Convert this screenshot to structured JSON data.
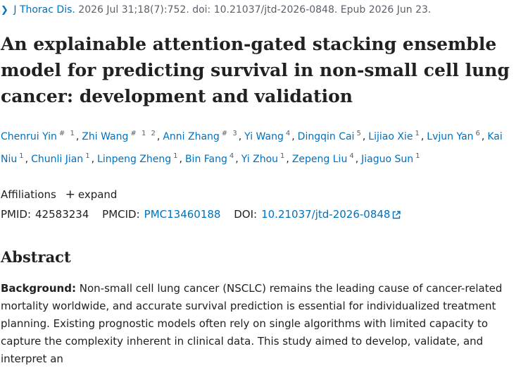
{
  "citation": {
    "journal": "J Thorac Dis.",
    "details": "2026 Jul 31;18(7):752. doi: 10.21037/jtd-2026-0848. Epub 2026 Jun 23."
  },
  "title": "An explainable attention-gated stacking ensemble model for predicting survival in non-small cell lung cancer: development and validation",
  "authors": [
    {
      "name": "Chenrui Yin",
      "sup": "# 1"
    },
    {
      "name": "Zhi Wang",
      "sup": "# 1 2"
    },
    {
      "name": "Anni Zhang",
      "sup": "# 3"
    },
    {
      "name": "Yi Wang",
      "sup": "4"
    },
    {
      "name": "Dingqin Cai",
      "sup": "5"
    },
    {
      "name": "Lijiao Xie",
      "sup": "1"
    },
    {
      "name": "Lvjun Yan",
      "sup": "6"
    },
    {
      "name": "Kai Niu",
      "sup": "1"
    },
    {
      "name": "Chunli Jian",
      "sup": "1"
    },
    {
      "name": "Linpeng Zheng",
      "sup": "1"
    },
    {
      "name": "Bin Fang",
      "sup": "4"
    },
    {
      "name": "Yi Zhou",
      "sup": "1"
    },
    {
      "name": "Zepeng Liu",
      "sup": "4"
    },
    {
      "name": "Jiaguo Sun",
      "sup": "1"
    }
  ],
  "affiliations": {
    "label": "Affiliations",
    "expand": "expand"
  },
  "identifiers": {
    "pmid_label": "PMID:",
    "pmid": "42583234",
    "pmcid_label": "PMCID:",
    "pmcid": "PMC13460188",
    "doi_label": "DOI:",
    "doi": "10.21037/jtd-2026-0848"
  },
  "abstract": {
    "heading": "Abstract",
    "background_label": "Background:",
    "background_text": "Non-small cell lung cancer (NSCLC) remains the leading cause of cancer-related mortality worldwide, and accurate survival prediction is essential for individualized treatment planning. Existing prognostic models often rely on single algorithms with limited capacity to capture the complexity inherent in clinical data. This study aimed to develop, validate, and interpret an"
  },
  "colors": {
    "link": "#0071bc",
    "text": "#212121",
    "muted": "#5b616b"
  },
  "icons": {
    "chevron": "chevron-right-icon",
    "plus": "plus-icon",
    "external": "external-link-icon"
  }
}
